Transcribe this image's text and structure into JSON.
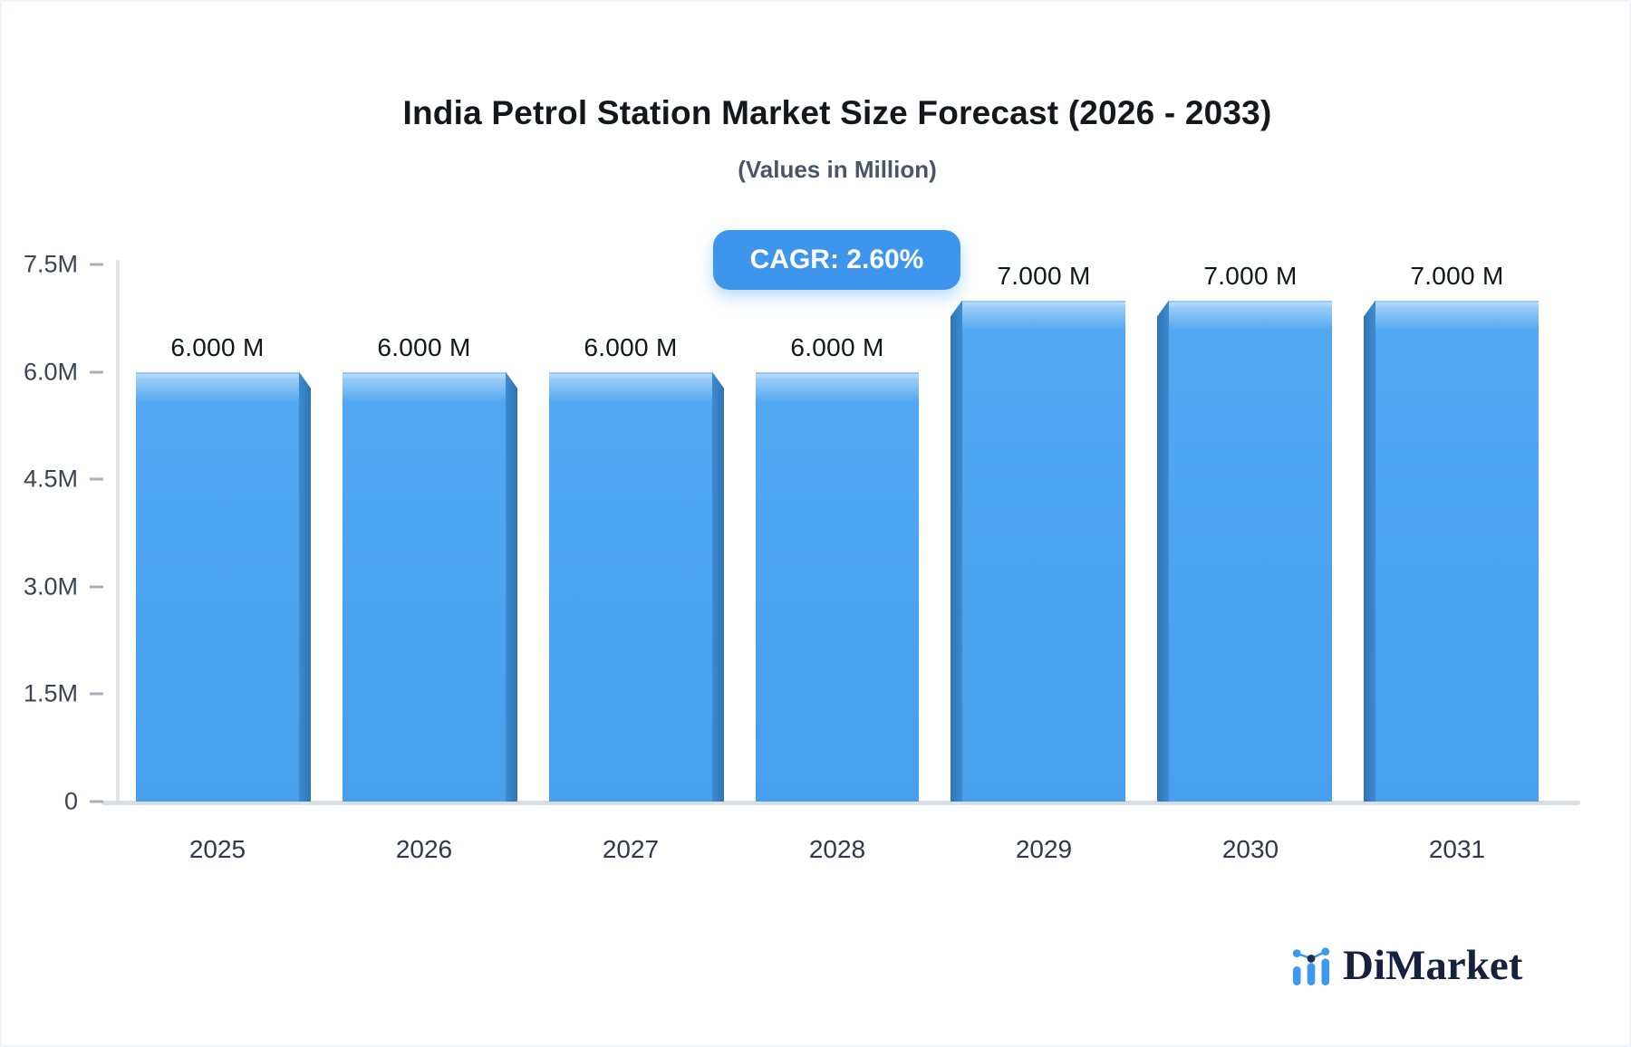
{
  "title": "India Petrol Station Market Size Forecast (2026 - 2033)",
  "subtitle": "(Values in Million)",
  "cagr_badge": "CAGR: 2.60%",
  "logo": {
    "text": "DiMarket",
    "icon": "mini-bar-line-chart-icon"
  },
  "colors": {
    "badge_blue": "#3d96ec",
    "bar_face_blue": "#4aa3ef",
    "bar_side_blue": "#2f7ab9",
    "axis_gray": "#dde2e7",
    "tick_gray": "#a9b0ba",
    "title_dark": "#14171c",
    "subtitle_gray": "#4a5568",
    "logo_navy": "#15213f",
    "logo_blue": "#3b9af0"
  },
  "chart_data": {
    "type": "bar",
    "title": "India Petrol Station Market Size Forecast (2026 - 2033)",
    "subtitle": "(Values in Million)",
    "annotation": "CAGR: 2.60%",
    "categories": [
      "2025",
      "2026",
      "2027",
      "2028",
      "2029",
      "2030",
      "2031"
    ],
    "values": [
      6.0,
      6.0,
      6.0,
      6.0,
      7.0,
      7.0,
      7.0
    ],
    "value_labels": [
      "6.000 M",
      "6.000 M",
      "6.000 M",
      "6.000 M",
      "7.000 M",
      "7.000 M",
      "7.000 M"
    ],
    "unit": "Million",
    "xlabel": "",
    "ylabel": "",
    "ylim": [
      0,
      7.5
    ],
    "yticks": [
      {
        "label": "7.5M",
        "value": 7.5
      },
      {
        "label": "6.0M",
        "value": 6.0
      },
      {
        "label": "4.5M",
        "value": 4.5
      },
      {
        "label": "3.0M",
        "value": 3.0
      },
      {
        "label": "1.5M",
        "value": 1.5
      },
      {
        "label": "0",
        "value": 0
      }
    ],
    "grid": false,
    "legend": "none",
    "style": "3d-bars"
  }
}
